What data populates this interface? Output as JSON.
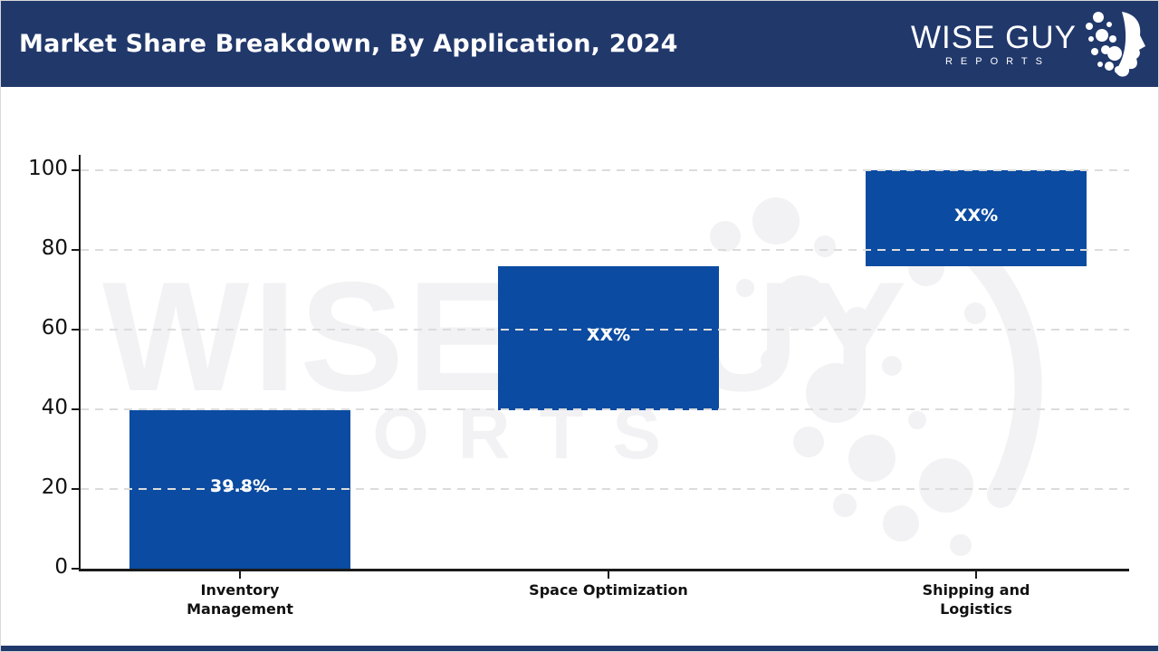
{
  "header": {
    "title": "Market Share Breakdown, By Application, 2024",
    "logo": {
      "line1": "WISE GUY",
      "line2": "REPORTS"
    }
  },
  "watermark": {
    "line1": "WISE GUY",
    "line2": "REPORTS"
  },
  "colors": {
    "header_bg": "#21386B",
    "bar": "#0B4BA1",
    "grid": "#DCDCDC",
    "axis": "#1A1A1A",
    "tick_text": "#111111",
    "value_text": "#FFFFFF",
    "watermark": "#F2F2F4"
  },
  "chart_data": {
    "type": "bar",
    "subtype": "waterfall",
    "title": "Market Share Breakdown, By Application, 2024",
    "categories": [
      "Inventory\nManagement",
      "Space Optimization",
      "Shipping and\nLogistics"
    ],
    "bars": [
      {
        "category": "Inventory Management",
        "start": 0,
        "end": 39.8,
        "value_label": "39.8%"
      },
      {
        "category": "Space Optimization",
        "start": 39.8,
        "end": 75.9,
        "value_label": "XX%"
      },
      {
        "category": "Shipping and Logistics",
        "start": 75.9,
        "end": 100,
        "value_label": "XX%"
      }
    ],
    "yticks": [
      0,
      20,
      40,
      60,
      80,
      100
    ],
    "ylim": [
      0,
      100
    ],
    "xlabel": "",
    "ylabel": "",
    "grid": "dashed-horizontal-above-bars",
    "legend": "none",
    "bar_color": "#0B4BA1"
  }
}
